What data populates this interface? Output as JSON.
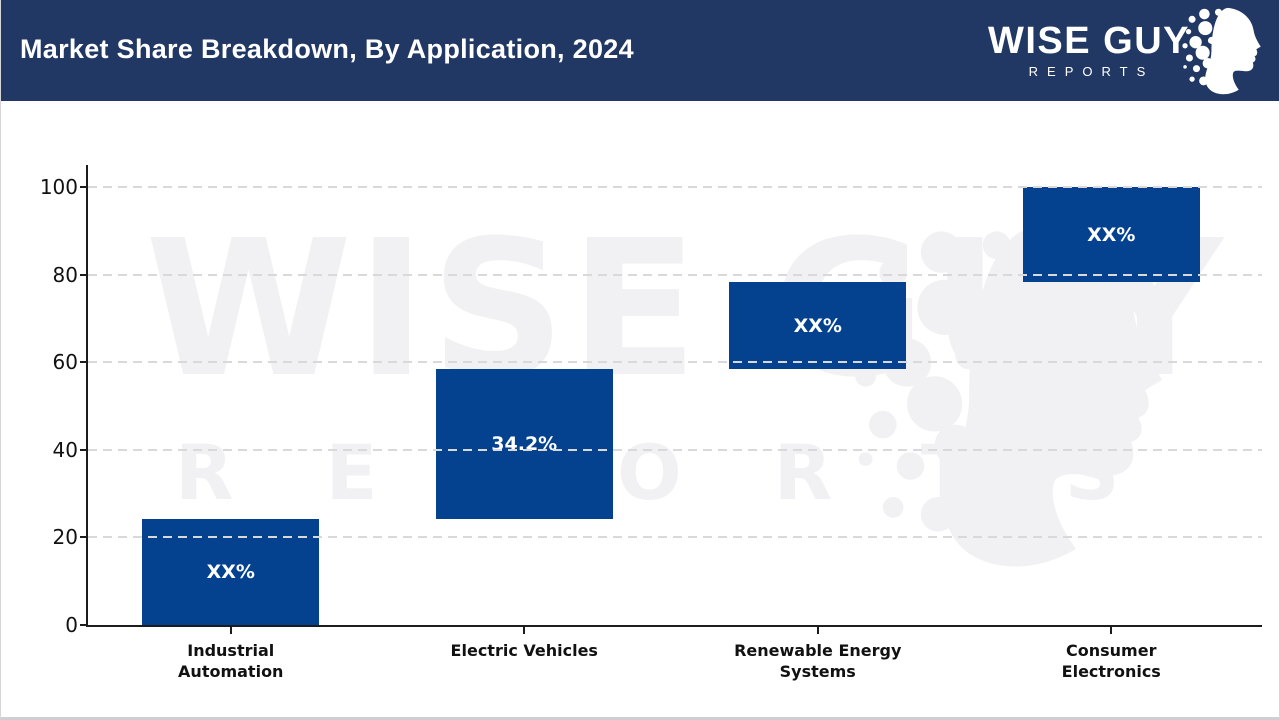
{
  "header": {
    "title": "Market Share Breakdown, By Application, 2024",
    "bg_color": "#213865",
    "logo": {
      "line1": "WISE GUY",
      "line2": "REPORTS"
    }
  },
  "watermark": {
    "line1": "WISE GUY",
    "line2": "REPORTS"
  },
  "chart_data": {
    "type": "bar",
    "subtype": "waterfall",
    "title": "Market Share Breakdown, By Application, 2024",
    "categories": [
      "Industrial Automation",
      "Electric Vehicles",
      "Renewable Energy Systems",
      "Consumer Electronics"
    ],
    "category_label_lines": [
      [
        "Industrial",
        "Automation"
      ],
      [
        "Electric Vehicles"
      ],
      [
        "Renewable Energy",
        "Systems"
      ],
      [
        "Consumer",
        "Electronics"
      ]
    ],
    "segments": [
      {
        "category": "Industrial Automation",
        "start": 0,
        "end": 24.3,
        "label": "XX%"
      },
      {
        "category": "Electric Vehicles",
        "start": 24.3,
        "end": 58.5,
        "label": "34.2%"
      },
      {
        "category": "Renewable Energy Systems",
        "start": 58.5,
        "end": 78.2,
        "label": "XX%"
      },
      {
        "category": "Consumer Electronics",
        "start": 78.2,
        "end": 100,
        "label": "XX%"
      }
    ],
    "ylim": [
      0,
      100
    ],
    "yticks": [
      0,
      20,
      40,
      60,
      80,
      100
    ],
    "grid": "horizontal-dashed",
    "bar_color": "#04418f",
    "grid_color": "#d9d9d9",
    "axis_color": "#1c1c1c"
  }
}
